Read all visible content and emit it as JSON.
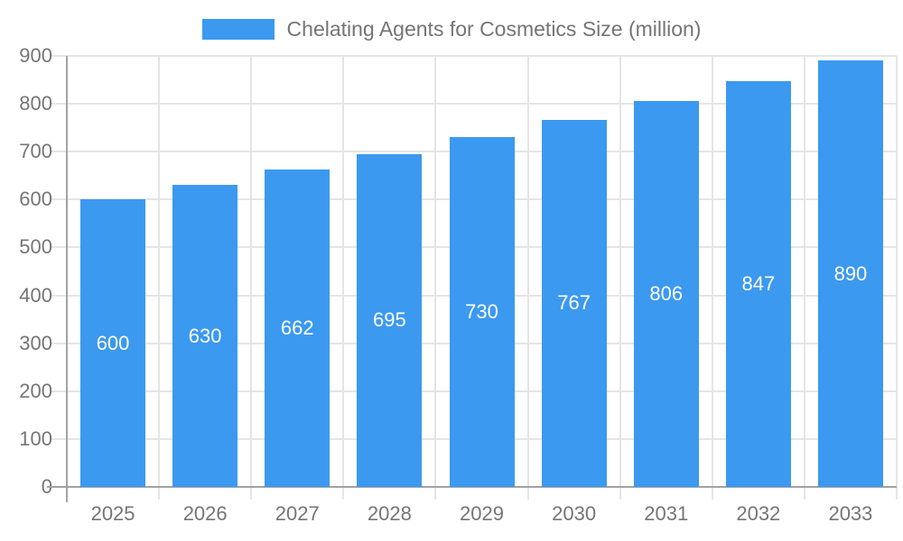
{
  "chart_data": {
    "type": "bar",
    "title": "Chelating Agents for Cosmetics Size (million)",
    "categories": [
      "2025",
      "2026",
      "2027",
      "2028",
      "2029",
      "2030",
      "2031",
      "2032",
      "2033"
    ],
    "values": [
      600,
      630,
      662,
      695,
      730,
      767,
      806,
      847,
      890
    ],
    "xlabel": "",
    "ylabel": "",
    "ylim": [
      0,
      900
    ],
    "ytick_step": 100,
    "grid": true,
    "legend_position": "top",
    "value_labels": "white-centered-inside-bars"
  },
  "colors": {
    "bar": "#3b99f0",
    "grid": "#e5e5e5",
    "axis_line": "#a2a2a2",
    "axis_text": "#757575",
    "bar_label": "#ffffff",
    "background": "#ffffff"
  }
}
